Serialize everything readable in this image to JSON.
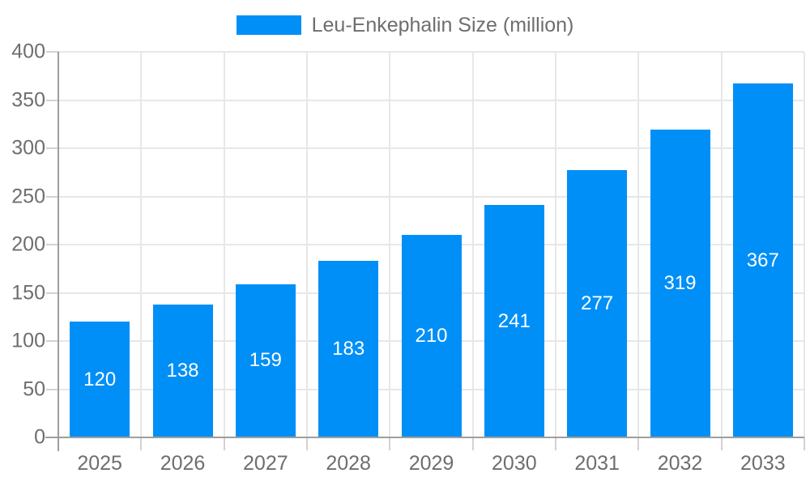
{
  "chart_data": {
    "type": "bar",
    "title": "Leu-Enkephalin Size (million)",
    "legend": {
      "label": "Leu-Enkephalin Size (million)",
      "position": "top-center"
    },
    "categories": [
      "2025",
      "2026",
      "2027",
      "2028",
      "2029",
      "2030",
      "2031",
      "2032",
      "2033"
    ],
    "values": [
      120,
      138,
      159,
      183,
      210,
      241,
      277,
      319,
      367
    ],
    "xlabel": "",
    "ylabel": "",
    "ylim": [
      0,
      400
    ],
    "yticks": [
      0,
      50,
      100,
      150,
      200,
      250,
      300,
      350,
      400
    ],
    "grid": true,
    "value_labels": "centered-inside-bars"
  },
  "colors": {
    "bar": "#008ff7",
    "axis": "#9e9e9e",
    "grid": "#e7e7e7",
    "tick": "#d2d2d2",
    "text": "#6e6e6e",
    "value_label": "#ffffff",
    "background": "#ffffff"
  }
}
